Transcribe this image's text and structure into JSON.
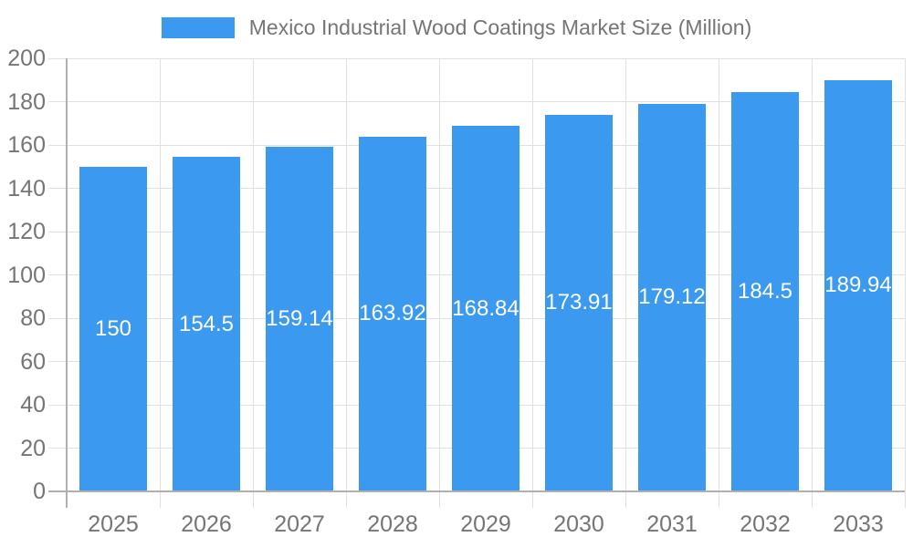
{
  "chart_data": {
    "type": "bar",
    "title": "Mexico Industrial Wood Coatings Market Size (Million)",
    "categories": [
      "2025",
      "2026",
      "2027",
      "2028",
      "2029",
      "2030",
      "2031",
      "2032",
      "2033"
    ],
    "values": [
      150,
      154.5,
      159.14,
      163.92,
      168.84,
      173.91,
      179.12,
      184.5,
      189.94
    ],
    "yticks": [
      0,
      20,
      40,
      60,
      80,
      100,
      120,
      140,
      160,
      180,
      200
    ],
    "ylim": [
      0,
      200
    ],
    "xlabel": "",
    "ylabel": "",
    "legend_position": "top-center",
    "grid": true,
    "value_labels_inside_bars": true,
    "colors": {
      "bar": "#3b99f0",
      "bar_value_text": "#ffffff",
      "axis_text": "#757575",
      "legend_text": "#757575",
      "gridline": "#e0e0e0",
      "axis_line": "#b0b0b0",
      "background": "#ffffff"
    }
  }
}
